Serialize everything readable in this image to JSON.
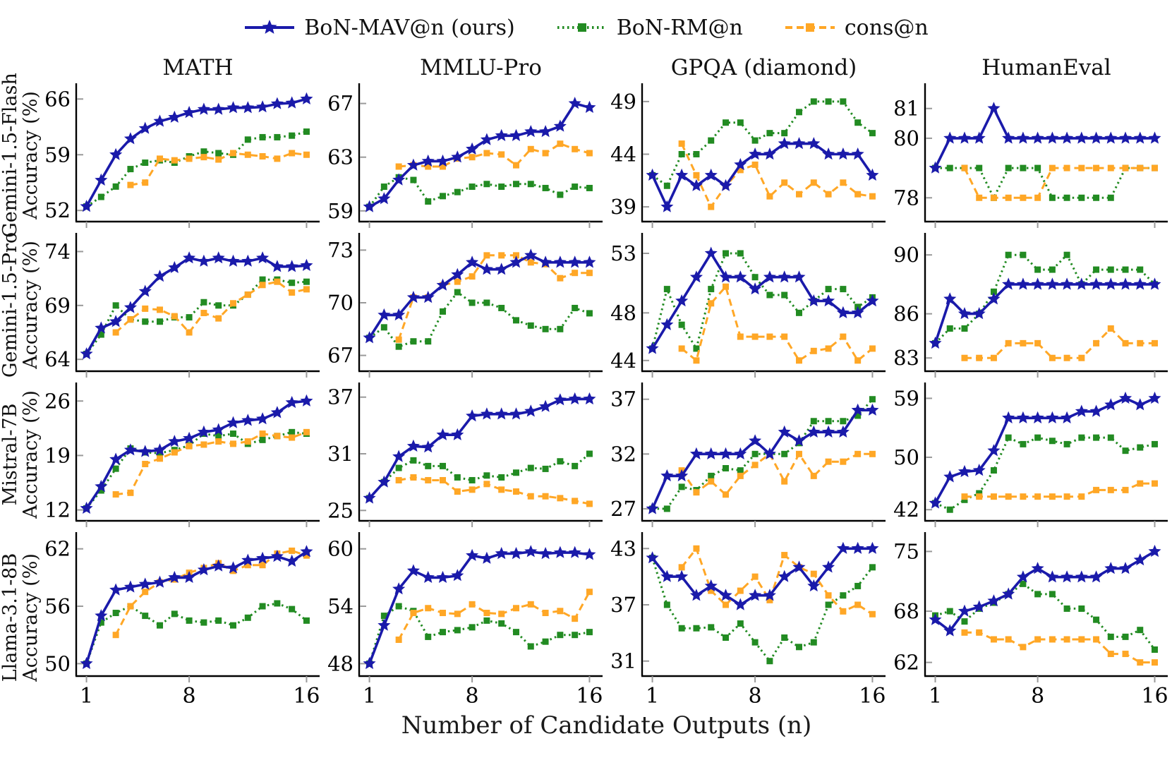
{
  "legend": [
    {
      "key": "mav",
      "label": "BoN-MAV@n (ours)",
      "color": "#1a1aaa",
      "marker": "star",
      "line": "solid"
    },
    {
      "key": "rm",
      "label": "BoN-RM@n",
      "color": "#228B22",
      "marker": "square",
      "line": "dotted"
    },
    {
      "key": "cons",
      "label": "cons@n",
      "color": "#FFA726",
      "marker": "square",
      "line": "dashed"
    }
  ],
  "rows": [
    "Gemini-1.5-Flash",
    "Gemini-1.5-Pro",
    "Mistral-7B",
    "Llama-3.1-8B"
  ],
  "row_sublabel": "Accuracy (%)",
  "cols": [
    "MATH",
    "MMLU-Pro",
    "GPQA (diamond)",
    "HumanEval"
  ],
  "xlabel": "Number of Candidate Outputs (n)",
  "xticks": [
    1,
    8,
    16
  ],
  "xlim": [
    0.3,
    16.7
  ],
  "x": [
    1,
    2,
    3,
    4,
    5,
    6,
    7,
    8,
    9,
    10,
    11,
    12,
    13,
    14,
    15,
    16
  ],
  "chart_data": [
    {
      "type": "line",
      "row": "Gemini-1.5-Flash",
      "col": "MATH",
      "yticks": [
        52,
        59,
        66
      ],
      "ylim": [
        50.6,
        67.8
      ],
      "series": {
        "mav": [
          52.5,
          55.8,
          59,
          61,
          62.3,
          63.2,
          63.7,
          64.3,
          64.7,
          64.7,
          64.9,
          64.9,
          65,
          65.4,
          65.5,
          66
        ],
        "rm": [
          52.5,
          53.7,
          55,
          57.2,
          58,
          58.3,
          58,
          58.8,
          59.4,
          59.2,
          59,
          60.9,
          61.2,
          61.2,
          61.4,
          61.9
        ],
        "cons": [
          null,
          null,
          null,
          55.2,
          55.5,
          58.5,
          58.3,
          58.5,
          58.7,
          58.4,
          59.2,
          59,
          58.8,
          58.5,
          59.2,
          59
        ]
      }
    },
    {
      "type": "line",
      "row": "Gemini-1.5-Flash",
      "col": "MMLU-Pro",
      "yticks": [
        59,
        63,
        67
      ],
      "ylim": [
        58.2,
        68.4
      ],
      "series": {
        "mav": [
          59.3,
          59.9,
          61.3,
          62.4,
          62.7,
          62.7,
          63,
          63.6,
          64.3,
          64.6,
          64.6,
          64.9,
          64.9,
          65.3,
          67,
          66.7
        ],
        "rm": [
          59.3,
          60.8,
          61.5,
          61.3,
          59.7,
          60.1,
          60.4,
          60.8,
          61,
          60.8,
          61,
          61,
          60.7,
          60.2,
          60.8,
          60.7
        ],
        "cons": [
          null,
          null,
          62.3,
          62.4,
          62.3,
          62.3,
          62.9,
          63,
          63.3,
          63.2,
          62.4,
          63.6,
          63.3,
          64,
          63.6,
          63.3
        ]
      }
    },
    {
      "type": "line",
      "row": "Gemini-1.5-Flash",
      "col": "GPQA (diamond)",
      "yticks": [
        39,
        44,
        49
      ],
      "ylim": [
        37.6,
        50.6
      ],
      "series": {
        "mav": [
          42,
          39,
          42,
          41,
          42,
          41,
          43,
          44,
          44,
          45,
          45,
          45,
          44,
          44,
          44,
          42
        ],
        "rm": [
          42,
          41,
          44,
          44,
          45.3,
          47,
          47,
          45.3,
          46,
          46,
          48,
          49,
          49,
          49,
          47,
          46
        ],
        "cons": [
          null,
          null,
          45,
          42,
          39,
          41,
          42.5,
          43,
          40,
          41.3,
          40.2,
          41.3,
          40.2,
          41.3,
          40.2,
          40
        ]
      }
    },
    {
      "type": "line",
      "row": "Gemini-1.5-Flash",
      "col": "HumanEval",
      "yticks": [
        78,
        80,
        81
      ],
      "ylim": [
        77.2,
        81.8
      ],
      "series": {
        "mav": [
          79,
          80,
          80,
          80,
          81,
          80,
          80,
          80,
          80,
          80,
          80,
          80,
          80,
          80,
          80,
          80
        ],
        "rm": [
          79,
          79,
          79,
          79,
          78,
          79,
          79,
          79,
          78,
          78,
          78,
          78,
          78,
          79,
          79,
          79
        ],
        "cons": [
          null,
          null,
          79,
          78,
          78,
          78,
          78,
          78,
          79,
          79,
          79,
          79,
          79,
          79,
          79,
          79
        ]
      }
    },
    {
      "type": "line",
      "row": "Gemini-1.5-Pro",
      "col": "MATH",
      "yticks": [
        64,
        69,
        74
      ],
      "ylim": [
        62.9,
        75.6
      ],
      "series": {
        "mav": [
          64.5,
          66.9,
          67.5,
          68.8,
          70.3,
          71.7,
          72.5,
          73.4,
          73.1,
          73.4,
          73.1,
          73.1,
          73.4,
          72.6,
          72.6,
          72.7
        ],
        "rm": [
          64.5,
          66.3,
          69,
          67.7,
          67.5,
          67.5,
          67.9,
          67.9,
          69.3,
          69,
          69,
          70,
          71.4,
          71.4,
          71.1,
          71.2
        ],
        "cons": [
          null,
          null,
          66.5,
          67.7,
          68.7,
          68.6,
          68,
          66.5,
          68.3,
          67.8,
          69.2,
          70,
          70.9,
          71.2,
          70.2,
          70.5
        ]
      }
    },
    {
      "type": "line",
      "row": "Gemini-1.5-Pro",
      "col": "MMLU-Pro",
      "yticks": [
        67,
        70,
        73
      ],
      "ylim": [
        66.1,
        73.9
      ],
      "series": {
        "mav": [
          68,
          69.3,
          69.3,
          70.3,
          70.3,
          71,
          71.6,
          72.3,
          71.9,
          71.9,
          72.3,
          72.7,
          72.3,
          72.3,
          72.3,
          72.3
        ],
        "rm": [
          68,
          68.6,
          67.5,
          67.8,
          67.8,
          69.5,
          70.6,
          70,
          70,
          69.7,
          69,
          68.7,
          68.5,
          68.5,
          69.7,
          69.4
        ],
        "cons": [
          null,
          null,
          67.9,
          70.3,
          70.3,
          71,
          71.2,
          71.5,
          72.7,
          72.7,
          72.7,
          72.3,
          72.2,
          71.4,
          71.7,
          71.7
        ]
      }
    },
    {
      "type": "line",
      "row": "Gemini-1.5-Pro",
      "col": "GPQA (diamond)",
      "yticks": [
        44,
        48,
        53
      ],
      "ylim": [
        43.1,
        54.6
      ],
      "series": {
        "mav": [
          45,
          47,
          49,
          51,
          53,
          51,
          51,
          50,
          51,
          51,
          51,
          49,
          49,
          48,
          48,
          49
        ],
        "rm": [
          45,
          50,
          47,
          45,
          50,
          53,
          53,
          51,
          49.5,
          49.5,
          48,
          49,
          50,
          50,
          48.5,
          49.3
        ],
        "cons": [
          null,
          null,
          45,
          44,
          48.8,
          50.2,
          46,
          46,
          46,
          46,
          44,
          44.8,
          45,
          46,
          44,
          45
        ]
      }
    },
    {
      "type": "line",
      "row": "Gemini-1.5-Pro",
      "col": "HumanEval",
      "yticks": [
        83,
        86,
        90
      ],
      "ylim": [
        82.1,
        91.4
      ],
      "series": {
        "mav": [
          84,
          87,
          86,
          86,
          87,
          88,
          88,
          88,
          88,
          88,
          88,
          88,
          88,
          88,
          88,
          88
        ],
        "rm": [
          84,
          85,
          85,
          86,
          87.5,
          90,
          90,
          89,
          89,
          90,
          88,
          89,
          89,
          89,
          89,
          88
        ],
        "cons": [
          null,
          null,
          83,
          83,
          83,
          84,
          84,
          84,
          83,
          83,
          83,
          84,
          85,
          84,
          84,
          84
        ]
      }
    },
    {
      "type": "line",
      "row": "Mistral-7B",
      "col": "MATH",
      "yticks": [
        12,
        19,
        26
      ],
      "ylim": [
        10.6,
        28.2
      ],
      "series": {
        "mav": [
          12.2,
          15,
          18.5,
          19.7,
          19.5,
          19.7,
          20.8,
          21.2,
          22,
          22.3,
          23.2,
          23.5,
          23.7,
          24.5,
          25.8,
          26
        ],
        "rm": [
          12.2,
          14.5,
          17.3,
          19.9,
          19.4,
          19.3,
          19.7,
          20.3,
          21.8,
          21.5,
          21.8,
          20.5,
          21,
          21.5,
          22,
          21.8
        ],
        "cons": [
          null,
          null,
          14,
          14.2,
          17.9,
          18.6,
          19.4,
          20.2,
          20.4,
          20.8,
          20.5,
          20.8,
          21.8,
          21.5,
          21.3,
          22
        ]
      }
    },
    {
      "type": "line",
      "row": "Mistral-7B",
      "col": "MMLU-Pro",
      "yticks": [
        25,
        31,
        37
      ],
      "ylim": [
        23.9,
        38.4
      ],
      "series": {
        "mav": [
          26.3,
          28,
          30.7,
          31.8,
          31.7,
          33,
          33,
          35,
          35.2,
          35.2,
          35.2,
          35.5,
          36,
          36.7,
          36.8,
          36.8
        ],
        "rm": [
          26.3,
          28,
          29.5,
          30.3,
          29.7,
          29.7,
          28.5,
          28.2,
          28.7,
          28.5,
          29,
          29.5,
          29.4,
          30.2,
          29.7,
          31
        ],
        "cons": [
          null,
          null,
          28.2,
          28.5,
          28.2,
          28.2,
          27,
          27.2,
          27.8,
          27.2,
          27,
          26.5,
          26.5,
          26.3,
          26,
          25.7
        ]
      }
    },
    {
      "type": "line",
      "row": "Mistral-7B",
      "col": "GPQA (diamond)",
      "yticks": [
        27,
        32,
        37
      ],
      "ylim": [
        25.9,
        38.4
      ],
      "series": {
        "mav": [
          27,
          30,
          30,
          32,
          32,
          32,
          32,
          33.2,
          32,
          34,
          33.2,
          34,
          34,
          34,
          36,
          36
        ],
        "rm": [
          27,
          27,
          29,
          28.7,
          30,
          30.7,
          30.5,
          32,
          32,
          32,
          33,
          35,
          35,
          35,
          35.5,
          37
        ],
        "cons": [
          null,
          null,
          30.5,
          28.5,
          29.5,
          28.3,
          30,
          31,
          32,
          29.5,
          32,
          30,
          31.3,
          31.3,
          32,
          32
        ]
      }
    },
    {
      "type": "line",
      "row": "Mistral-7B",
      "col": "HumanEval",
      "yticks": [
        42,
        50,
        59
      ],
      "ylim": [
        40.3,
        61.2
      ],
      "series": {
        "mav": [
          43,
          47,
          47.8,
          48,
          51,
          56,
          56,
          56,
          56,
          56,
          57,
          57,
          58,
          59,
          58,
          59
        ],
        "rm": [
          43,
          42,
          43.5,
          44.5,
          48,
          53,
          52,
          53,
          52.5,
          52,
          53,
          53,
          53,
          51,
          51.5,
          52
        ],
        "cons": [
          null,
          null,
          44,
          44,
          44,
          44,
          44,
          44,
          44,
          44,
          44,
          45,
          45,
          45,
          46,
          46
        ]
      }
    },
    {
      "type": "line",
      "row": "Llama-3.1-8B",
      "col": "MATH",
      "yticks": [
        50,
        56,
        62
      ],
      "ylim": [
        48.7,
        63.6
      ],
      "series": {
        "mav": [
          50,
          55,
          57.7,
          58,
          58.3,
          58.5,
          59,
          59,
          59.8,
          60.2,
          60,
          60.8,
          61,
          61.2,
          60.7,
          61.7
        ],
        "rm": [
          50,
          54.3,
          55.3,
          56,
          55,
          54,
          55.2,
          54.5,
          54.3,
          54.5,
          54,
          54.8,
          56,
          56.3,
          55.7,
          54.5
        ],
        "cons": [
          null,
          null,
          53,
          56,
          57.5,
          58.5,
          58.8,
          59.5,
          60,
          60.5,
          59.7,
          60.3,
          60.3,
          61.5,
          61.8,
          61.3
        ]
      }
    },
    {
      "type": "line",
      "row": "Llama-3.1-8B",
      "col": "MMLU-Pro",
      "yticks": [
        48,
        54,
        60
      ],
      "ylim": [
        46.7,
        61.6
      ],
      "series": {
        "mav": [
          48,
          52,
          55.8,
          57.7,
          57,
          57,
          57.2,
          59.3,
          59,
          59.5,
          59.5,
          59.7,
          59.5,
          59.6,
          59.6,
          59.4
        ],
        "rm": [
          48,
          53,
          54,
          53.5,
          50.8,
          51.3,
          51.5,
          51.8,
          52.5,
          52.2,
          51.3,
          49.8,
          50.3,
          51,
          51,
          51.3
        ],
        "cons": [
          null,
          null,
          50.5,
          53.3,
          53.8,
          53.3,
          53.2,
          54.2,
          53.3,
          53.2,
          53.8,
          54.2,
          53.3,
          53.5,
          52.7,
          55.5
        ]
      }
    },
    {
      "type": "line",
      "row": "Llama-3.1-8B",
      "col": "GPQA (diamond)",
      "yticks": [
        31,
        37,
        43
      ],
      "ylim": [
        29.4,
        44.6
      ],
      "series": {
        "mav": [
          42,
          40,
          40,
          38,
          39,
          38,
          37,
          38,
          38,
          40,
          41,
          39,
          41,
          43,
          43,
          43
        ],
        "rm": [
          42,
          37,
          34.5,
          34.5,
          34.6,
          33.5,
          35,
          33,
          31,
          33.5,
          32.5,
          33,
          37,
          38,
          39,
          41
        ],
        "cons": [
          null,
          null,
          41,
          43,
          38.5,
          37,
          38.5,
          40,
          37.5,
          42.3,
          41,
          40.3,
          38,
          36.3,
          37,
          36
        ]
      }
    },
    {
      "type": "line",
      "row": "Llama-3.1-8B",
      "col": "HumanEval",
      "yticks": [
        62,
        68,
        75
      ],
      "ylim": [
        60.4,
        77.1
      ],
      "series": {
        "mav": [
          67,
          65.7,
          68,
          68.5,
          69.2,
          70,
          72,
          73,
          72,
          72,
          72,
          72,
          73,
          73,
          74,
          75
        ],
        "rm": [
          67.5,
          68,
          66.8,
          68.3,
          69,
          70,
          71.2,
          70,
          70,
          68.3,
          68.3,
          67,
          65,
          65,
          65.8,
          63.5
        ],
        "cons": [
          null,
          null,
          65.5,
          65.5,
          64.7,
          64.7,
          63.8,
          64.7,
          64.7,
          64.7,
          64.7,
          64.7,
          63,
          63,
          62,
          62
        ]
      }
    }
  ]
}
